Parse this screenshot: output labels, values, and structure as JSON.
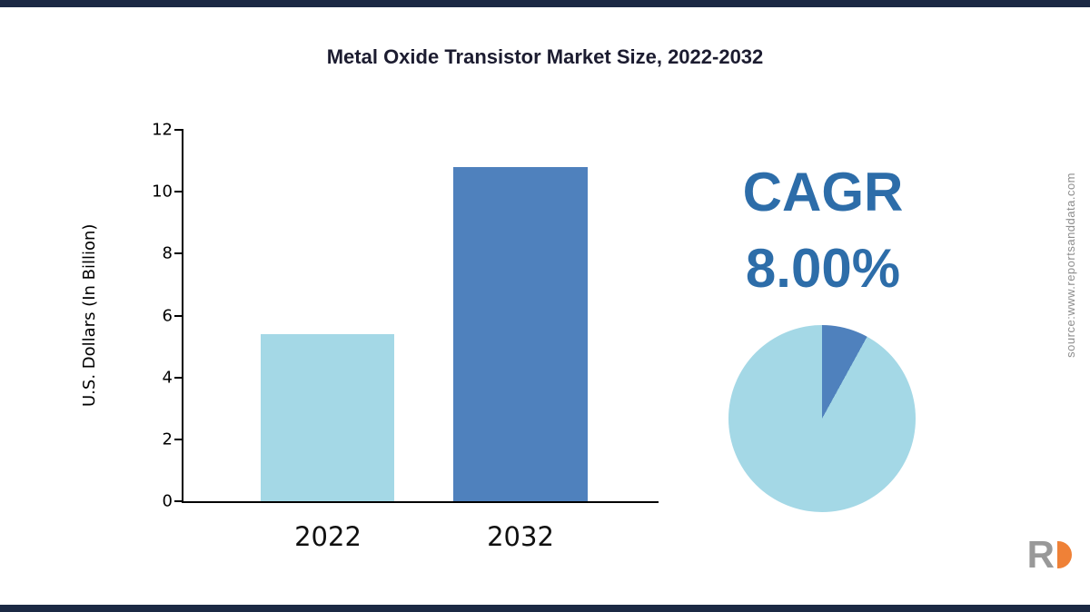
{
  "title": "Metal Oxide Transistor Market Size, 2022-2032",
  "chart_data": [
    {
      "type": "bar",
      "title": "Metal Oxide Transistor Market Size, 2022-2032",
      "categories": [
        "2022",
        "2032"
      ],
      "values": [
        5.4,
        10.8
      ],
      "xlabel": "",
      "ylabel": "U.S. Dollars (In Billion)",
      "ylim": [
        0,
        12
      ],
      "yticks": [
        0,
        2,
        4,
        6,
        8,
        10,
        12
      ],
      "bar_colors": [
        "#a4d8e6",
        "#4f81bd"
      ],
      "grid": false,
      "legend": "none"
    },
    {
      "type": "pie",
      "title": "CAGR 8.00%",
      "slices": [
        {
          "label": "cagr-highlight",
          "percent": 8,
          "color": "#4f81bd"
        },
        {
          "label": "remainder",
          "percent": 92,
          "color": "#a4d8e6"
        }
      ],
      "legend": "none"
    }
  ],
  "cagr": {
    "label": "CAGR",
    "value": "8.00%",
    "percent": 8,
    "text_color": "#2d6da9"
  },
  "source": {
    "text": "source:www.reportsanddata.com"
  },
  "logo": {
    "letter": "R"
  },
  "colors": {
    "bar_2022": "#a4d8e6",
    "bar_2032": "#4f81bd",
    "accent_blue": "#2d6da9",
    "edge_navy": "#1b2944",
    "logo_gray": "#999999",
    "logo_orange": "#ef8137"
  }
}
